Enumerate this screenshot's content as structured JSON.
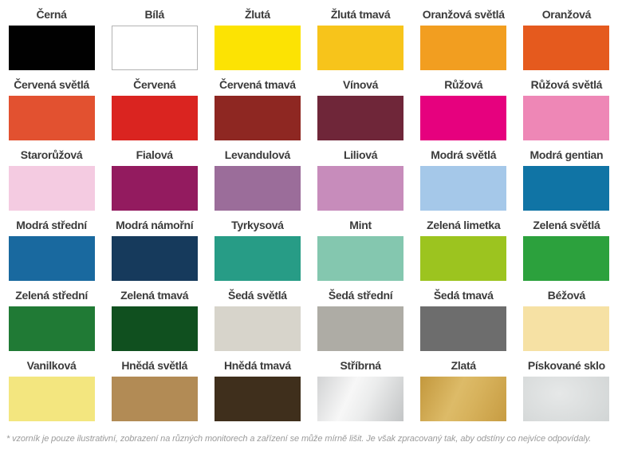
{
  "page": {
    "background": "#ffffff",
    "label_color": "#3b3b3b",
    "footnote": "* vzorník je pouze ilustrativní, zobrazení na různých monitorech a zařízení se může mírně lišit. Je však zpracovaný tak, aby odstíny co nejvíce odpovídaly.",
    "footnote_color": "#9b9b9b"
  },
  "chart_data": {
    "type": "table",
    "columns_count": 6,
    "rows_count": 6,
    "legend_position": "labels-above-swatches",
    "swatches": [
      {
        "label": "Černá",
        "background": "#010101"
      },
      {
        "label": "Bílá",
        "background": "#ffffff",
        "border": "#b3b3b3"
      },
      {
        "label": "Žlutá",
        "background": "#fce303"
      },
      {
        "label": "Žlutá tmavá",
        "background": "#f7c41b"
      },
      {
        "label": "Oranžová světlá",
        "background": "#f29e20"
      },
      {
        "label": "Oranžová",
        "background": "#e55a1e"
      },
      {
        "label": "Červená světlá",
        "background": "#e25130"
      },
      {
        "label": "Červená",
        "background": "#da2420"
      },
      {
        "label": "Červená tmavá",
        "background": "#8e2722"
      },
      {
        "label": "Vínová",
        "background": "#6f2639"
      },
      {
        "label": "Růžová",
        "background": "#e6017e"
      },
      {
        "label": "Růžová světlá",
        "background": "#ee87b6"
      },
      {
        "label": "Starorůžová",
        "background": "#f4cbe1"
      },
      {
        "label": "Fialová",
        "background": "#931b5f"
      },
      {
        "label": "Levandulová",
        "background": "#9b6d9a"
      },
      {
        "label": "Liliová",
        "background": "#c78cbb"
      },
      {
        "label": "Modrá světlá",
        "background": "#a5c8e9"
      },
      {
        "label": "Modrá gentian",
        "background": "#1074a5"
      },
      {
        "label": "Modrá střední",
        "background": "#19699f"
      },
      {
        "label": "Modrá námořní",
        "background": "#163a5c"
      },
      {
        "label": "Tyrkysová",
        "background": "#279c86"
      },
      {
        "label": "Mint",
        "background": "#84c7af"
      },
      {
        "label": "Zelená limetka",
        "background": "#9cc41f"
      },
      {
        "label": "Zelená světlá",
        "background": "#2ca13d"
      },
      {
        "label": "Zelená střední",
        "background": "#207a35"
      },
      {
        "label": "Zelená tmavá",
        "background": "#10501f"
      },
      {
        "label": "Šedá světlá",
        "background": "#d7d4cb"
      },
      {
        "label": "Šedá střední",
        "background": "#aeaca5"
      },
      {
        "label": "Šedá tmavá",
        "background": "#6d6d6d"
      },
      {
        "label": "Béžová",
        "background": "#f6e1a4"
      },
      {
        "label": "Vanilková",
        "background": "#f3e67f"
      },
      {
        "label": "Hnědá světlá",
        "background": "#b28b55"
      },
      {
        "label": "Hnědá tmavá",
        "background": "#3f2f1c"
      },
      {
        "label": "Stříbrná",
        "background": "linear-gradient(115deg, #d2d3d4 0%, #f7f7f7 38%, #ebecec 58%, #c3c5c6 100%)"
      },
      {
        "label": "Zlatá",
        "background": "linear-gradient(115deg, #c3983d 0%, #ddbb68 42%, #d7b25c 62%, #c79c42 100%)"
      },
      {
        "label": "Pískované sklo",
        "background": "radial-gradient(90% 130% at 42% 38%, #e6e8e8 0%, #d8dbdb 55%, #ccd0d0 100%)"
      }
    ]
  }
}
